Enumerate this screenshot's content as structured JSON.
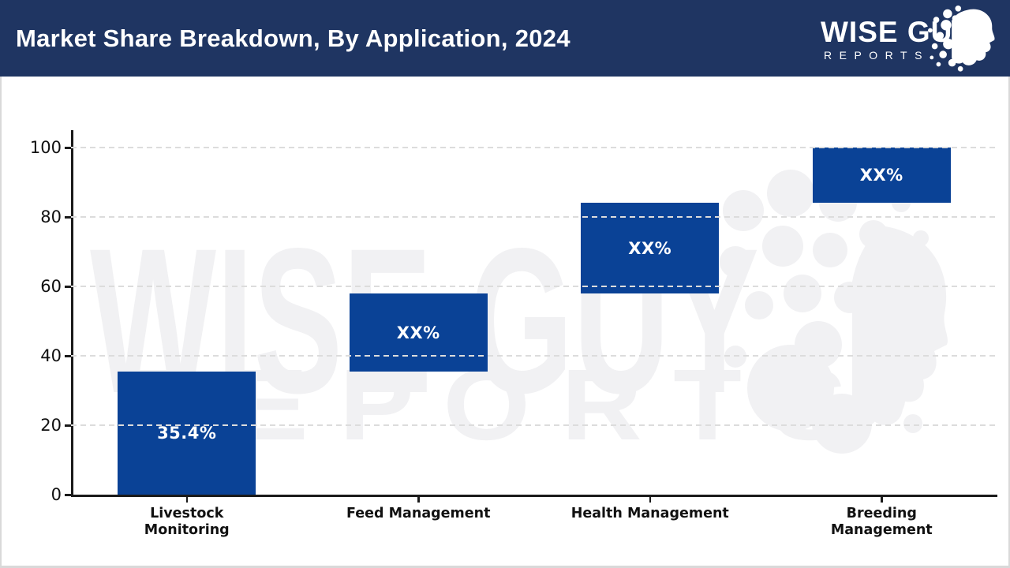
{
  "header": {
    "title": "Market Share Breakdown, By Application, 2024",
    "bg_color": "#1f3562",
    "logo": {
      "line1": "WISE GUY",
      "line2": "REPORTS"
    }
  },
  "watermark": {
    "line1": "WISE GUY",
    "line2": "R E P O R T S",
    "color": "#f1f1f3"
  },
  "chart_data": {
    "type": "bar",
    "subtype": "waterfall",
    "title": "Market Share Breakdown, By Application, 2024",
    "categories": [
      "Livestock\nMonitoring",
      "Feed Management",
      "Health Management",
      "Breeding\nManagement"
    ],
    "segments": [
      {
        "category": "Livestock Monitoring",
        "start": 0,
        "end": 35.4,
        "label": "35.4%"
      },
      {
        "category": "Feed Management",
        "start": 35.4,
        "end": 58,
        "label": "XX%"
      },
      {
        "category": "Health Management",
        "start": 58,
        "end": 84,
        "label": "XX%"
      },
      {
        "category": "Breeding Management",
        "start": 84,
        "end": 100,
        "label": "XX%"
      }
    ],
    "ylim": [
      0,
      100
    ],
    "yticks": [
      0,
      20,
      40,
      60,
      80,
      100
    ],
    "xlabel": "",
    "ylabel": "",
    "grid": "horizontal-dashed",
    "legend": "none",
    "bar_color": "#0a4296",
    "bar_label_color": "#ffffff",
    "axis_color": "#1a1a1a",
    "gridline_color": "#dcdcdc"
  }
}
